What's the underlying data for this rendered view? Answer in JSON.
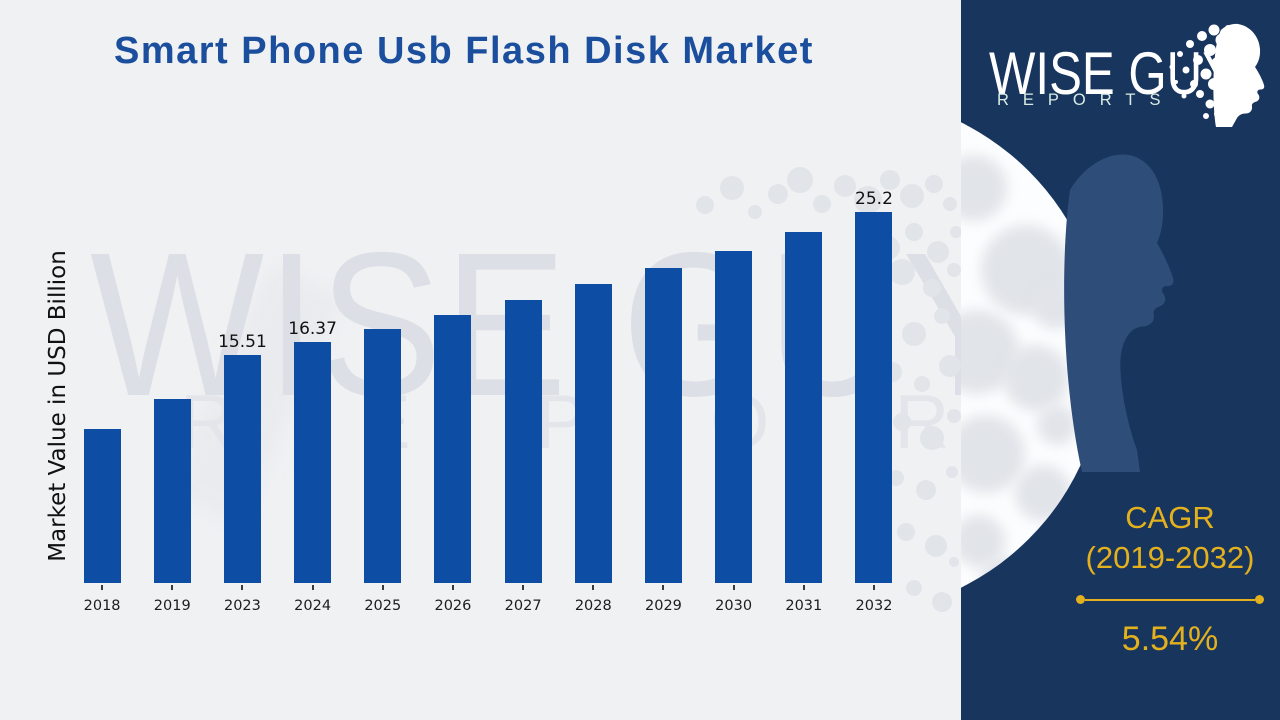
{
  "title": "Smart Phone Usb Flash Disk Market",
  "y_axis": {
    "label": "Market Value in USD Billion"
  },
  "watermark": {
    "line1": "WISE GUY",
    "line2": "R E P O R T S"
  },
  "brand_panel": {
    "logo": {
      "name_line": "WISE GUY",
      "sub_line": "REPORTS"
    },
    "cagr": {
      "heading": "CAGR",
      "range": "(2019-2032)",
      "value": "5.54%"
    }
  },
  "colors": {
    "bar": "#0d4da3",
    "title_blue": "#1b4f9e",
    "panel_navy": "#18355e",
    "accent_gold": "#e3b01e",
    "face_blue": "#2e4d78",
    "background_gray": "#f0f1f3"
  },
  "chart_data": {
    "type": "bar",
    "title": "Smart Phone Usb Flash Disk Market",
    "xlabel": "",
    "ylabel": "Market Value in USD Billion",
    "unit": "USD Billion",
    "categories": [
      "2018",
      "2019",
      "2023",
      "2024",
      "2025",
      "2026",
      "2027",
      "2028",
      "2029",
      "2030",
      "2031",
      "2032"
    ],
    "values": [
      10.5,
      12.5,
      15.51,
      16.37,
      17.27,
      18.23,
      19.24,
      20.3,
      21.43,
      22.61,
      23.87,
      25.2
    ],
    "bar_labels": [
      null,
      null,
      "15.51",
      "16.37",
      null,
      null,
      null,
      null,
      null,
      null,
      null,
      "25.2"
    ],
    "ylim": [
      0,
      27.4
    ],
    "grid": false,
    "legend": null
  }
}
